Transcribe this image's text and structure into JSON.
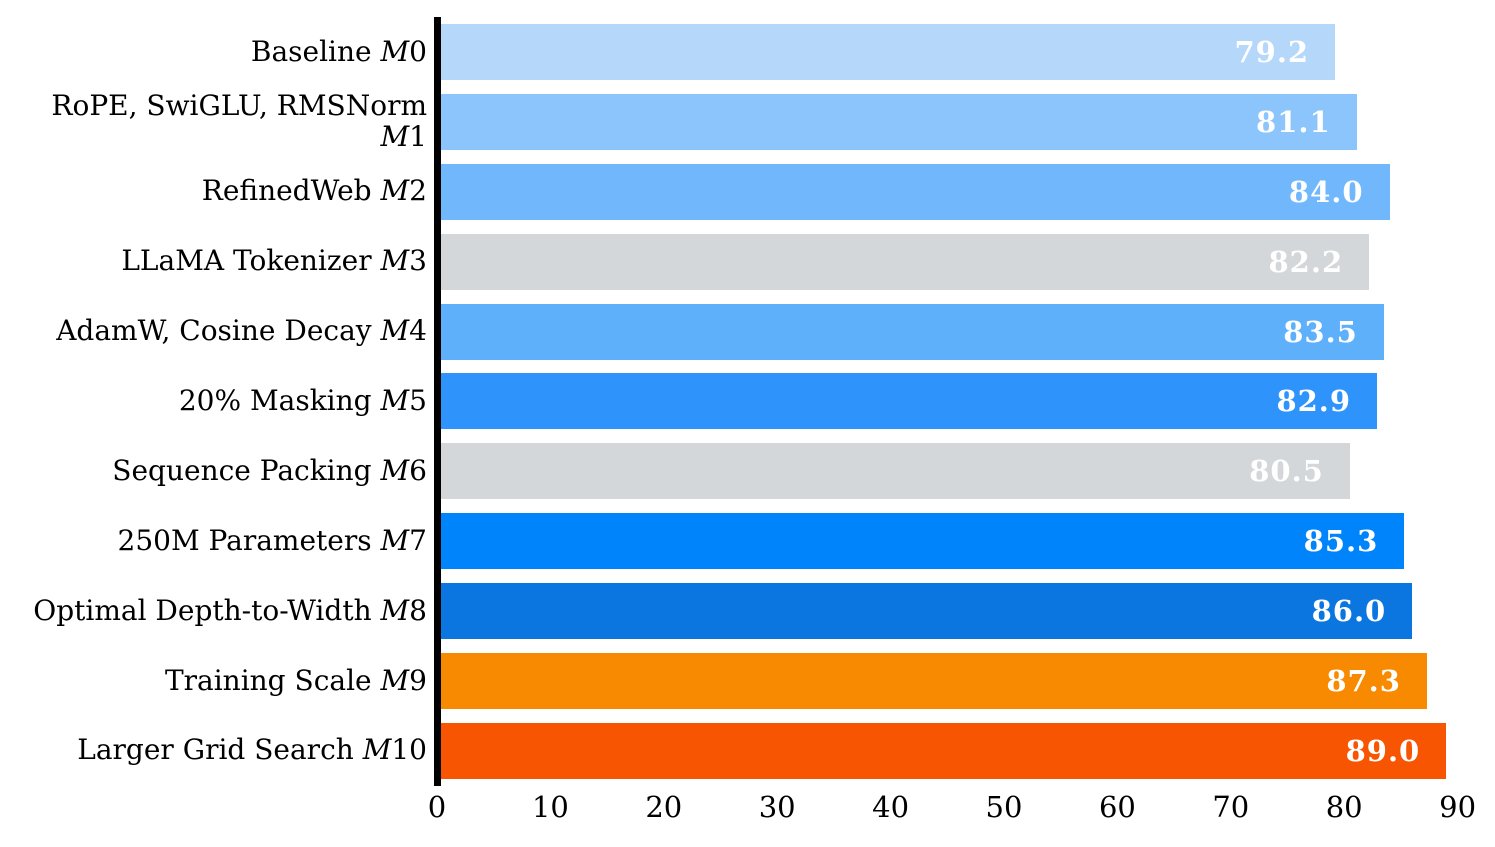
{
  "chart_data": {
    "type": "bar",
    "orientation": "horizontal",
    "title": "",
    "xlabel": "",
    "ylabel": "",
    "xlim": [
      0,
      90
    ],
    "x_ticks": [
      0,
      10,
      20,
      30,
      40,
      50,
      60,
      70,
      80,
      90
    ],
    "grid": false,
    "legend": false,
    "axis_spine_color": "#000000",
    "value_label_color": "#ffffff",
    "categories": [
      "Baseline M0",
      "RoPE, SwiGLU, RMSNorm M1",
      "RefinedWeb M2",
      "LLaMA Tokenizer M3",
      "AdamW, Cosine Decay M4",
      "20% Masking M5",
      "Sequence Packing M6",
      "250M Parameters M7",
      "Optimal Depth-to-Width M8",
      "Training Scale M9",
      "Larger Grid Search M10"
    ],
    "bars": [
      {
        "label": "Baseline",
        "model": "M0",
        "value": 79.2,
        "value_text": "79.2",
        "color": "#b5d7fa"
      },
      {
        "label": "RoPE, SwiGLU, RMSNorm",
        "model": "M1",
        "value": 81.1,
        "value_text": "81.1",
        "color": "#8cc5fb"
      },
      {
        "label": "RefinedWeb",
        "model": "M2",
        "value": 84.0,
        "value_text": "84.0",
        "color": "#70b7fb"
      },
      {
        "label": "LLaMA Tokenizer",
        "model": "M3",
        "value": 82.2,
        "value_text": "82.2",
        "color": "#d4d7d9"
      },
      {
        "label": "AdamW, Cosine Decay",
        "model": "M4",
        "value": 83.5,
        "value_text": "83.5",
        "color": "#5fb0fb"
      },
      {
        "label": "20% Masking",
        "model": "M5",
        "value": 82.9,
        "value_text": "82.9",
        "color": "#2e93fb"
      },
      {
        "label": "Sequence Packing",
        "model": "M6",
        "value": 80.5,
        "value_text": "80.5",
        "color": "#d4d7d9"
      },
      {
        "label": "250M Parameters",
        "model": "M7",
        "value": 85.3,
        "value_text": "85.3",
        "color": "#0084fb"
      },
      {
        "label": "Optimal Depth-to-Width",
        "model": "M8",
        "value": 86.0,
        "value_text": "86.0",
        "color": "#0b76e0"
      },
      {
        "label": "Training Scale",
        "model": "M9",
        "value": 87.3,
        "value_text": "87.3",
        "color": "#f88a02"
      },
      {
        "label": "Larger Grid Search",
        "model": "M10",
        "value": 89.0,
        "value_text": "89.0",
        "color": "#f85503"
      }
    ]
  }
}
